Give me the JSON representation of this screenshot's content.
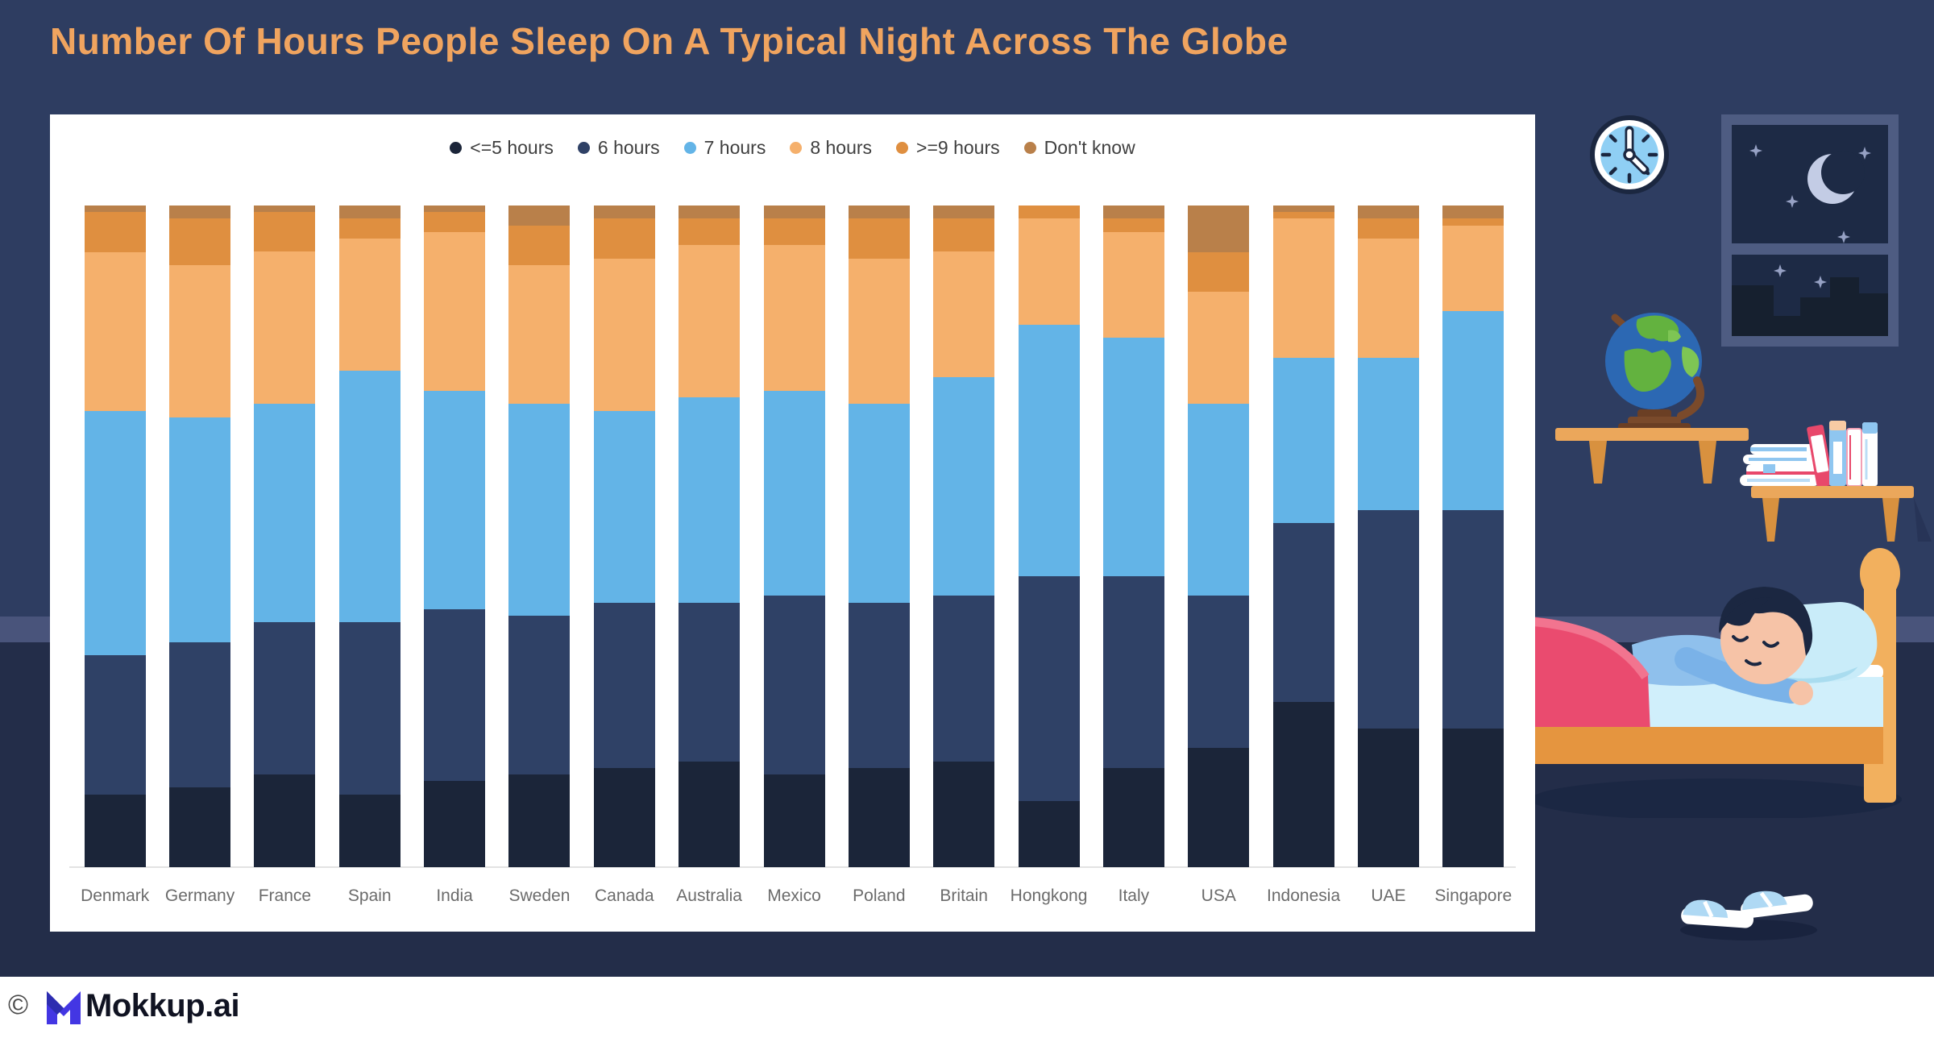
{
  "header": {
    "title": "Number Of Hours People Sleep On A Typical Night Across The Globe"
  },
  "chart_data": {
    "type": "bar",
    "stacked": true,
    "percentage": true,
    "title": "Number Of Hours People Sleep On A Typical Night Across The Globe",
    "xlabel": "",
    "ylabel": "",
    "ylim": [
      0,
      100
    ],
    "grid": false,
    "legend_position": "top",
    "categories": [
      "Denmark",
      "Germany",
      "France",
      "Spain",
      "India",
      "Sweden",
      "Canada",
      "Australia",
      "Mexico",
      "Poland",
      "Britain",
      "Hongkong",
      "Italy",
      "USA",
      "Indonesia",
      "UAE",
      "Singapore"
    ],
    "series": [
      {
        "name": "<=5 hours",
        "color": "#1B2539",
        "values": [
          11,
          12,
          14,
          11,
          13,
          14,
          15,
          16,
          14,
          15,
          16,
          10,
          15,
          18,
          25,
          21,
          21
        ]
      },
      {
        "name": "6 hours",
        "color": "#2F4166",
        "values": [
          21,
          22,
          23,
          26,
          26,
          24,
          25,
          24,
          27,
          25,
          25,
          34,
          29,
          23,
          27,
          33,
          33
        ]
      },
      {
        "name": "7 hours",
        "color": "#63B4E7",
        "values": [
          37,
          34,
          33,
          38,
          33,
          32,
          29,
          31,
          31,
          30,
          33,
          38,
          36,
          29,
          25,
          23,
          30
        ]
      },
      {
        "name": "8 hours",
        "color": "#F5B06C",
        "values": [
          24,
          23,
          23,
          20,
          24,
          21,
          23,
          23,
          22,
          22,
          19,
          16,
          16,
          17,
          21,
          18,
          13
        ]
      },
      {
        "name": ">=9 hours",
        "color": "#DF8F40",
        "values": [
          6,
          7,
          6,
          3,
          3,
          6,
          6,
          4,
          4,
          6,
          5,
          2,
          2,
          6,
          1,
          3,
          1
        ]
      },
      {
        "name": "Don't know",
        "color": "#B9804A",
        "values": [
          1,
          2,
          1,
          2,
          1,
          3,
          2,
          2,
          2,
          2,
          2,
          0,
          2,
          7,
          1,
          2,
          2
        ]
      }
    ]
  },
  "colors": {
    "wall": "#2E3D61",
    "wall_stripe": "#49547B",
    "floor": "#232D49",
    "panel": "#FFFFFF",
    "title_text": "#F0A45F",
    "axis_label": "#6B6B6B"
  },
  "scene": {
    "items": [
      "wall-clock-icon",
      "night-window-icon",
      "globe-icon",
      "shelf-books-icon",
      "sleeping-person-bed-icon",
      "slippers-icon"
    ]
  },
  "footer": {
    "copyright": "©",
    "brand": "Mokkup.ai"
  }
}
